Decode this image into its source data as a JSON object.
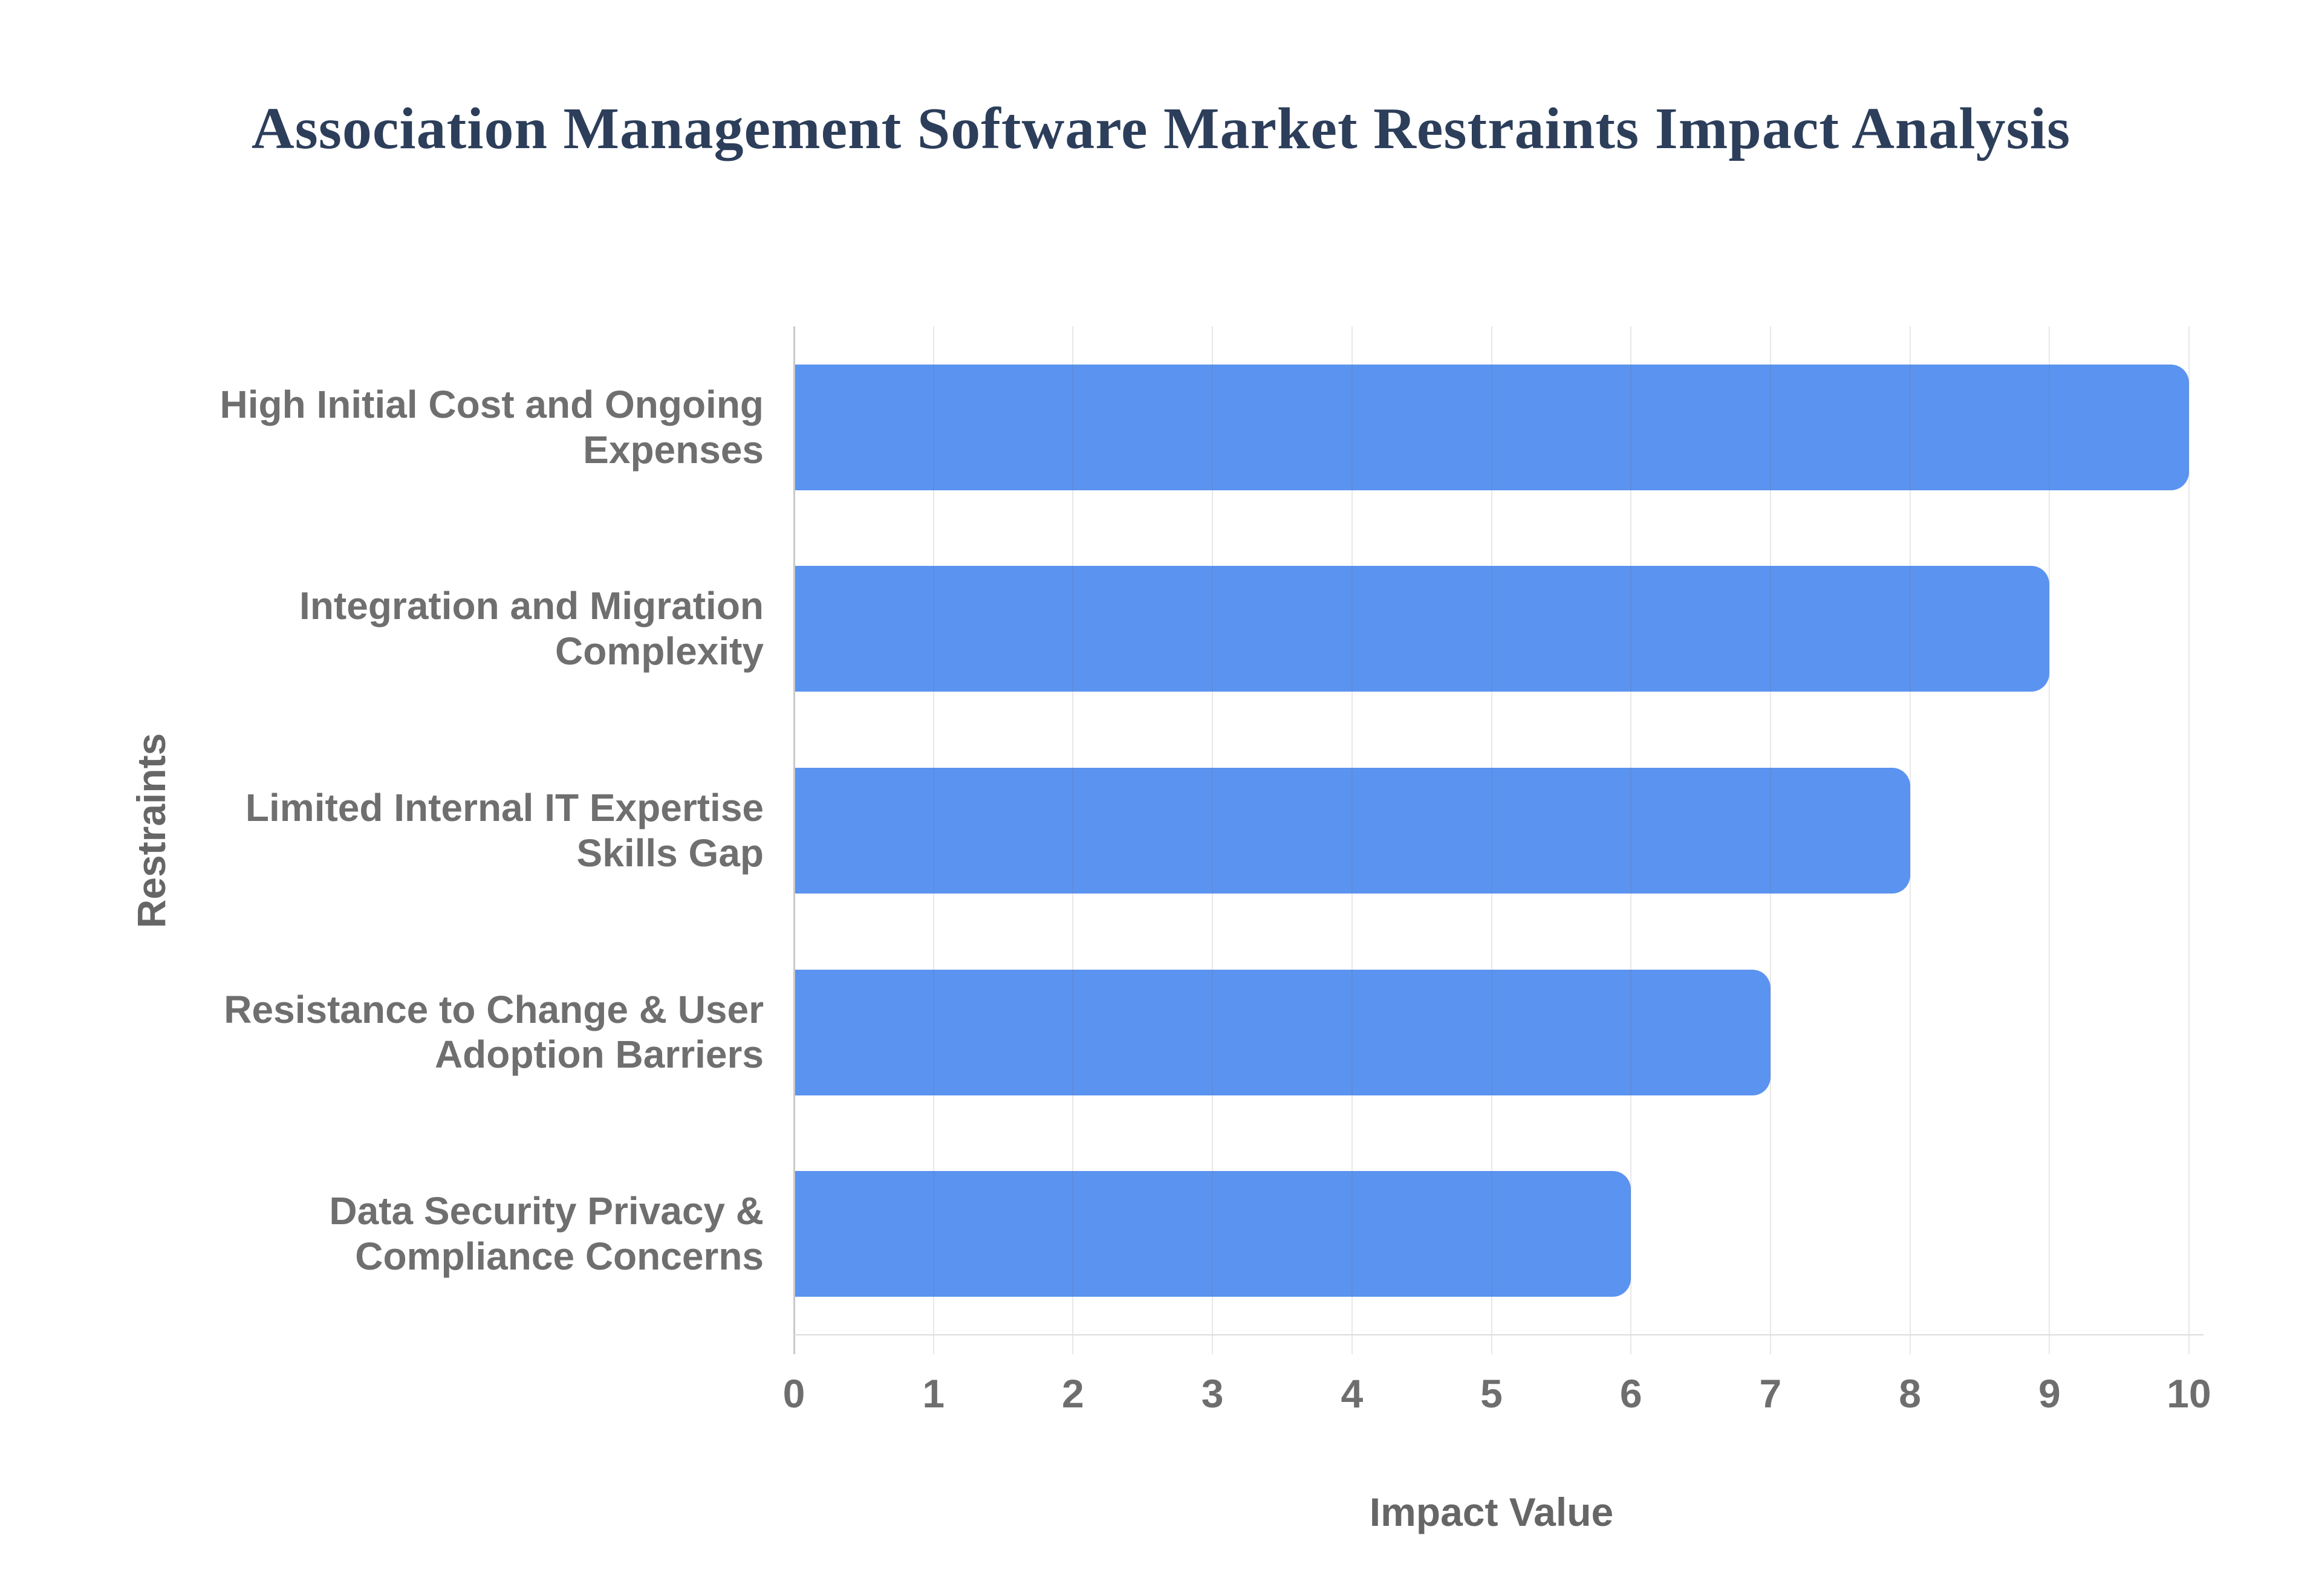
{
  "chart_data": {
    "type": "bar",
    "orientation": "horizontal",
    "title": "Association Management Software Market Restraints Impact Analysis",
    "xlabel": "Impact Value",
    "ylabel": "Restraints",
    "categories": [
      "High Initial Cost and Ongoing Expenses",
      "Integration and Migration Complexity",
      "Limited Internal IT Expertise Skills Gap",
      "Resistance to Change & User Adoption Barriers",
      "Data Security Privacy & Compliance Concerns"
    ],
    "category_lines": [
      [
        "High Initial Cost and Ongoing",
        "Expenses"
      ],
      [
        "Integration and Migration",
        "Complexity"
      ],
      [
        "Limited Internal IT Expertise",
        "Skills Gap"
      ],
      [
        "Resistance to Change & User",
        "Adoption Barriers"
      ],
      [
        "Data Security Privacy &",
        "Compliance Concerns"
      ]
    ],
    "values": [
      10,
      9,
      8,
      7,
      6
    ],
    "xlim": [
      0,
      10
    ],
    "x_ticks": [
      0,
      1,
      2,
      3,
      4,
      5,
      6,
      7,
      8,
      9,
      10
    ],
    "grid": "vertical-gridlines-on",
    "legend": "none",
    "colors": {
      "bar_fill": "#5b93f0",
      "grid_line": "rgba(110,110,110,0.16)",
      "axis_line": "#c9c9c9",
      "baseline": "#dcdcdc",
      "tick_text": "#6e6e6e",
      "category_text": "#6f6f6f",
      "axis_title_text": "#666666",
      "title_text": "#2c3e5a"
    }
  }
}
